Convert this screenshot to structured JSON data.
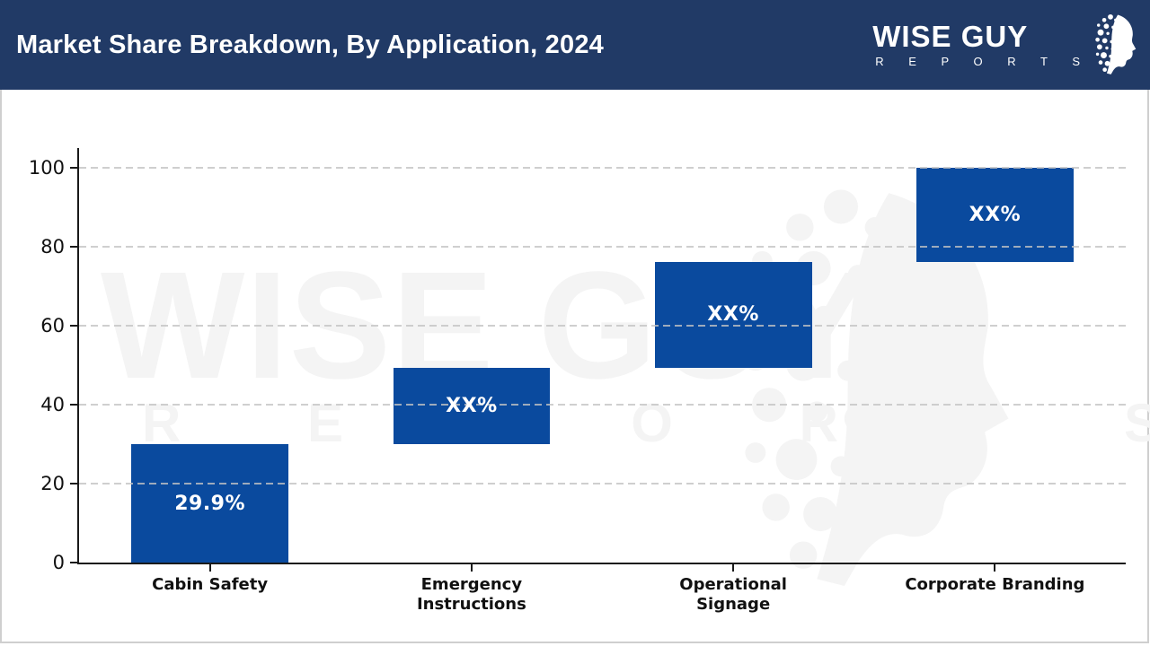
{
  "header": {
    "title": "Market Share Breakdown, By Application, 2024"
  },
  "brand": {
    "name_line": "WISE GUY",
    "reports_line": "R E P O R T S"
  },
  "watermark": {
    "line1": "WISE GUY",
    "line2": "R E P O R T S"
  },
  "colors": {
    "header_bg": "#213a66",
    "title_text": "#ffffff",
    "bar": "#0a4a9e",
    "bar_label": "#ffffff",
    "gridline": "rgba(195,195,195,0.8)",
    "axis": "#1a1a1a",
    "tick_text": "#111111",
    "watermark": "#f4f4f4",
    "frame_border": "#cfcfcf"
  },
  "chart_data": {
    "type": "bar",
    "subtype": "waterfall",
    "title": "Market Share Breakdown, By Application, 2024",
    "categories": [
      "Cabin Safety",
      "Emergency\nInstructions",
      "Operational\nSignage",
      "Corporate Branding"
    ],
    "segments": [
      {
        "category": "Cabin Safety",
        "start": 0,
        "end": 29.9,
        "label": "29.9%"
      },
      {
        "category": "Emergency Instructions",
        "start": 29.9,
        "end": 49.3,
        "label": "XX%"
      },
      {
        "category": "Operational Signage",
        "start": 49.3,
        "end": 76.2,
        "label": "XX%"
      },
      {
        "category": "Corporate Branding",
        "start": 76.2,
        "end": 100,
        "label": "XX%"
      }
    ],
    "xlabel": "",
    "ylabel": "",
    "ylim": [
      0,
      100
    ],
    "yticks": [
      0,
      20,
      40,
      60,
      80,
      100
    ],
    "grid": "horizontal-dashed",
    "legend": "none"
  }
}
